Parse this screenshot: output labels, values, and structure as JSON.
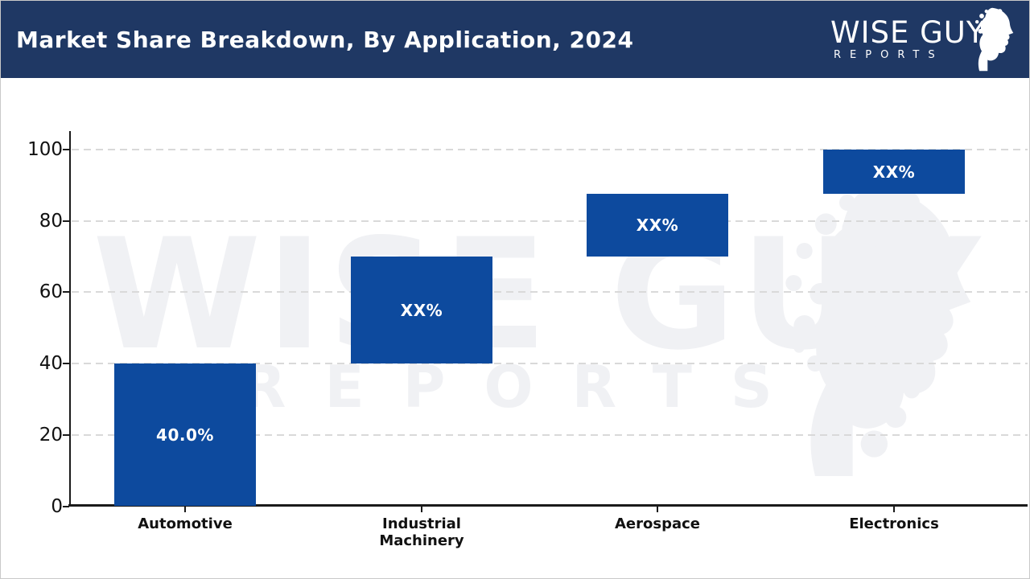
{
  "header": {
    "title": "Market Share Breakdown, By Application, 2024",
    "logo": {
      "name": "WISE GUY",
      "subtitle": "REPORTS"
    }
  },
  "watermark": {
    "line1": "WISE GUY",
    "line2": "REPORTS"
  },
  "colors": {
    "header_bg": "#1f3864",
    "bar": "#0d4a9e",
    "grid": "#d9d9d9",
    "axis": "#1a1a1a",
    "watermark": "#f0f1f4"
  },
  "chart_data": {
    "type": "bar",
    "subtype": "waterfall",
    "title": "Market Share Breakdown, By Application, 2024",
    "categories": [
      "Automotive",
      "Industrial Machinery",
      "Aerospace",
      "Electronics"
    ],
    "segments": [
      {
        "category": "Automotive",
        "start": 0,
        "end": 40,
        "label": "40.0%"
      },
      {
        "category": "Industrial Machinery",
        "start": 40,
        "end": 70,
        "label": "XX%"
      },
      {
        "category": "Aerospace",
        "start": 70,
        "end": 87.5,
        "label": "XX%"
      },
      {
        "category": "Electronics",
        "start": 87.5,
        "end": 100,
        "label": "XX%"
      }
    ],
    "xlabel": "",
    "ylabel": "",
    "ylim": [
      0,
      100
    ],
    "yticks": [
      0,
      20,
      40,
      60,
      80,
      100
    ],
    "grid": "horizontal-dashed",
    "legend": "none"
  }
}
